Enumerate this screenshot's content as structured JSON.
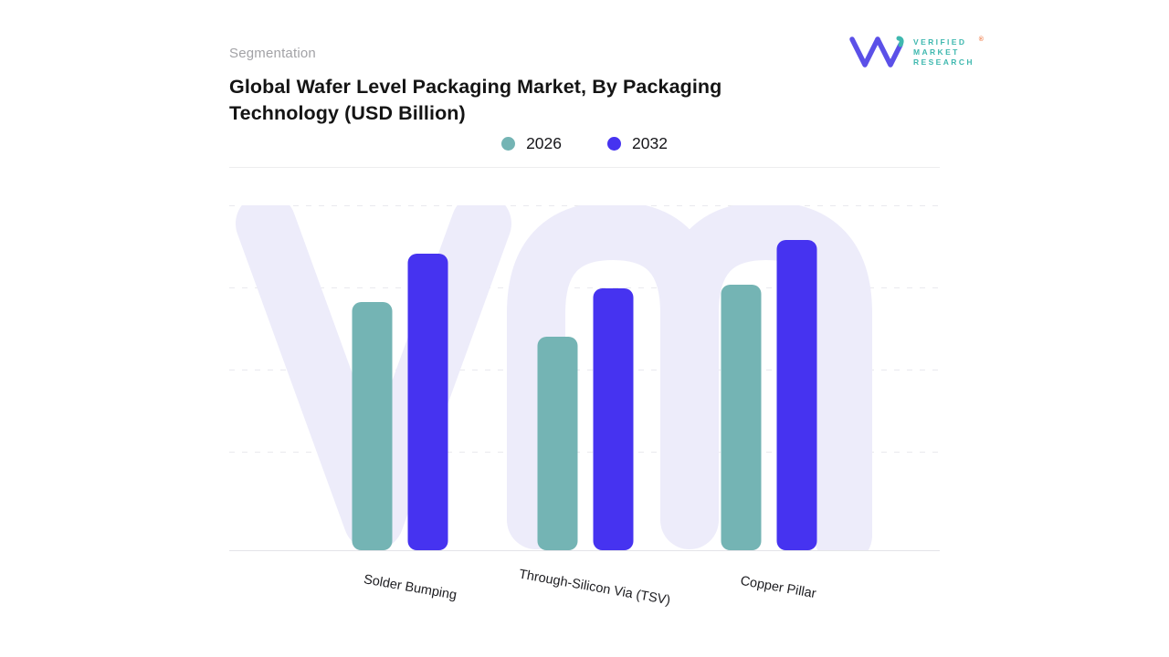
{
  "header": {
    "eyebrow": "Segmentation",
    "title_line1": "Global Wafer Level Packaging Market, By Packaging",
    "title_line2": "Technology (USD Billion)"
  },
  "logo": {
    "name": "Verified Market Research",
    "line1": "VERIFIED",
    "line2": "MARKET",
    "line3": "RESEARCH",
    "registered_mark": "®",
    "mark_purple": "#5b50e8",
    "mark_teal": "#3fb8af",
    "text_color": "#3fb8af",
    "registered_color": "#f0804f"
  },
  "legend": {
    "items": [
      {
        "label": "2026",
        "color": "#74b4b4"
      },
      {
        "label": "2032",
        "color": "#4633f0"
      }
    ]
  },
  "chart_data": {
    "type": "bar",
    "title": "Global Wafer Level Packaging Market, By Packaging Technology (USD Billion)",
    "categories": [
      "Solder Bumping",
      "Through-Silicon Via (TSV)",
      "Copper Pillar"
    ],
    "series": [
      {
        "name": "2026",
        "color": "#74b4b4",
        "values": [
          7.2,
          6.2,
          7.7
        ]
      },
      {
        "name": "2032",
        "color": "#4633f0",
        "values": [
          8.6,
          7.6,
          9.0
        ]
      }
    ],
    "ylim": [
      0,
      10
    ],
    "y_axis_labels_visible": false,
    "value_labels_visible": false,
    "grid": "horizontal-dashed",
    "legend_position": "top-center",
    "watermark_text": "vm"
  }
}
